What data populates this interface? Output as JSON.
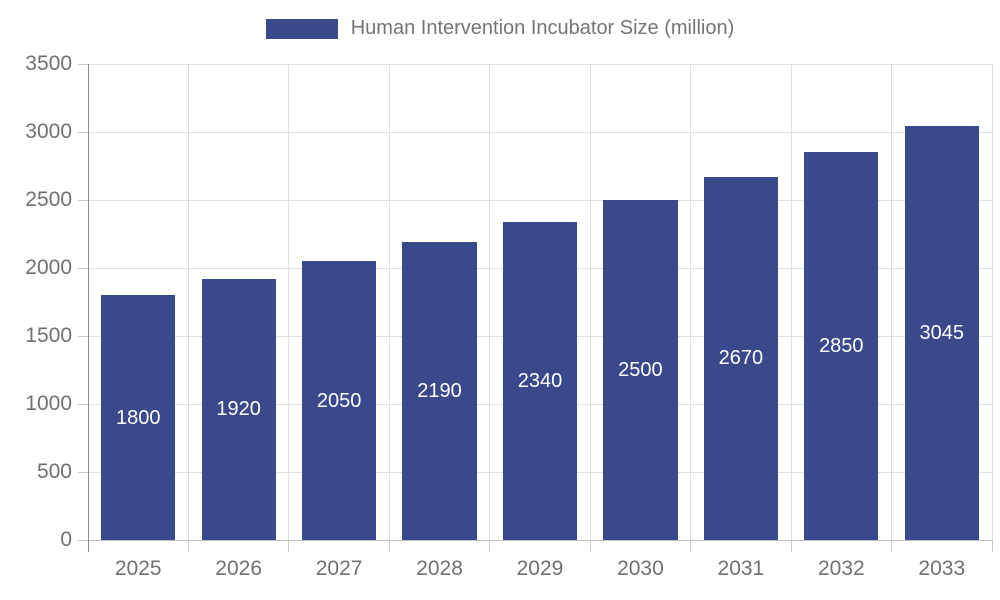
{
  "chart_data": {
    "type": "bar",
    "title": "",
    "legend": {
      "label": "Human Intervention Incubator Size (million)",
      "position": "top"
    },
    "categories": [
      "2025",
      "2026",
      "2027",
      "2028",
      "2029",
      "2030",
      "2031",
      "2032",
      "2033"
    ],
    "values": [
      1800,
      1920,
      2050,
      2190,
      2340,
      2500,
      2670,
      2850,
      3045
    ],
    "series": [
      {
        "name": "Human Intervention Incubator Size (million)",
        "values": [
          1800,
          1920,
          2050,
          2190,
          2340,
          2500,
          2670,
          2850,
          3045
        ]
      }
    ],
    "xlabel": "",
    "ylabel": "",
    "ylim": [
      0,
      3500
    ],
    "yticks": [
      0,
      500,
      1000,
      1500,
      2000,
      2500,
      3000,
      3500
    ],
    "grid": true,
    "value_labels_shown": true,
    "colors": {
      "bar": "#39498B",
      "bar_value_label": "#FFFFFF",
      "axis_label": "#707070",
      "legend_text": "#757575",
      "grid_line": "#E0E0E0",
      "zero_line": "#C0C0C0",
      "axis_line": "#8C8C8C",
      "tick": "#C9C9C9",
      "background": "#FFFFFF"
    }
  }
}
